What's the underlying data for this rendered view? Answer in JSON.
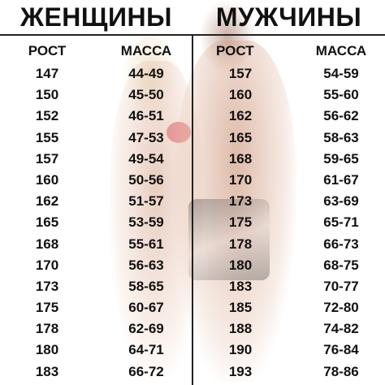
{
  "title_left": "ЖЕНЩИНЫ",
  "title_right": "МУЖЧИНЫ",
  "women": {
    "height_header": "РОСТ",
    "weight_header": "МАССА",
    "heights": [
      "147",
      "150",
      "152",
      "155",
      "157",
      "160",
      "162",
      "165",
      "168",
      "170",
      "173",
      "175",
      "178",
      "180",
      "183"
    ],
    "weights": [
      "44-49",
      "45-50",
      "46-51",
      "47-53",
      "49-54",
      "50-56",
      "51-57",
      "53-59",
      "55-61",
      "56-63",
      "58-65",
      "60-67",
      "62-69",
      "64-71",
      "66-72"
    ]
  },
  "men": {
    "height_header": "РОСТ",
    "weight_header": "МАССА",
    "heights": [
      "157",
      "160",
      "162",
      "165",
      "168",
      "170",
      "173",
      "175",
      "178",
      "180",
      "183",
      "185",
      "188",
      "190",
      "193"
    ],
    "weights": [
      "54-59",
      "55-60",
      "56-62",
      "58-63",
      "59-65",
      "61-67",
      "63-69",
      "65-71",
      "66-73",
      "68-75",
      "70-77",
      "72-80",
      "74-82",
      "76-84",
      "78-86"
    ]
  }
}
